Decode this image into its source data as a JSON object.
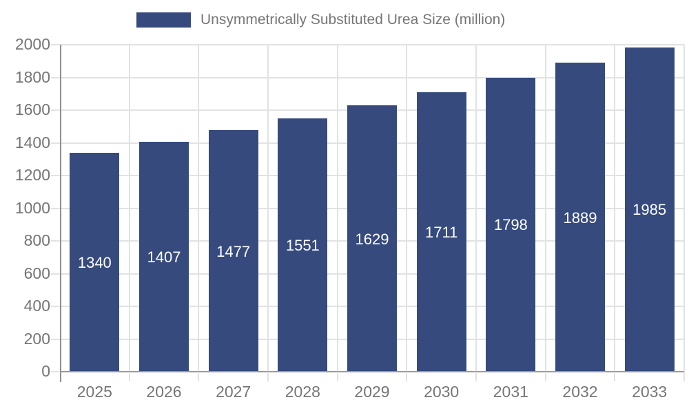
{
  "chart_data": {
    "type": "bar",
    "title": "",
    "legend": {
      "label": "Unsymmetrically Substituted Urea Size (million)",
      "position": "top"
    },
    "categories": [
      "2025",
      "2026",
      "2027",
      "2028",
      "2029",
      "2030",
      "2031",
      "2032",
      "2033"
    ],
    "series": [
      {
        "name": "Unsymmetrically Substituted Urea Size (million)",
        "values": [
          1340,
          1407,
          1477,
          1551,
          1629,
          1711,
          1798,
          1889,
          1985
        ]
      }
    ],
    "xlabel": "",
    "ylabel": "",
    "ylim": [
      0,
      2000
    ],
    "ytick_interval": 200,
    "yticks": [
      0,
      200,
      400,
      600,
      800,
      1000,
      1200,
      1400,
      1600,
      1800,
      2000
    ],
    "grid": true,
    "colors": {
      "bar": "#364a7e",
      "bar_value_label": "#ffffff",
      "axis_text": "#757575",
      "grid_line": "#e2e2e2",
      "axis_line": "#8f8f8f"
    }
  }
}
